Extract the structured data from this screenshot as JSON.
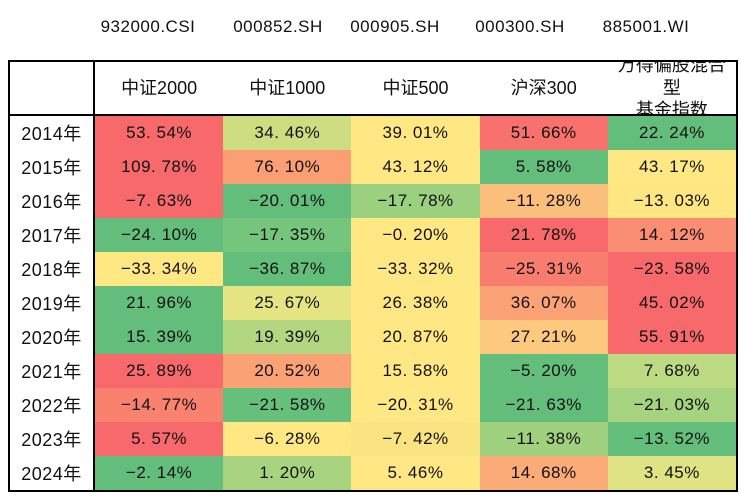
{
  "page": {
    "background": "#ffffff",
    "text_color": "#111111"
  },
  "codes": [
    "932000.CSI",
    "000852.SH",
    "000905.SH",
    "000300.SH",
    "885001.WI"
  ],
  "table": {
    "corner_label": "",
    "columns": [
      "中证2000",
      "中证1000",
      "中证500",
      "沪深300",
      "万得偏股混合型\n基金指数"
    ],
    "rows": [
      {
        "year": "2014年",
        "cells": [
          {
            "text": "53. 54%",
            "color": "#F8696B"
          },
          {
            "text": "34. 46%",
            "color": "#CEDC82"
          },
          {
            "text": "39. 01%",
            "color": "#FFE884"
          },
          {
            "text": "51. 66%",
            "color": "#F8716C"
          },
          {
            "text": "22. 24%",
            "color": "#63BE7B"
          }
        ]
      },
      {
        "year": "2015年",
        "cells": [
          {
            "text": "109. 78%",
            "color": "#F8696B"
          },
          {
            "text": "76. 10%",
            "color": "#FA9E74"
          },
          {
            "text": "43. 12%",
            "color": "#FFE884"
          },
          {
            "text": "5. 58%",
            "color": "#63BE7B"
          },
          {
            "text": "43. 17%",
            "color": "#FFE884"
          }
        ]
      },
      {
        "year": "2016年",
        "cells": [
          {
            "text": "−7. 63%",
            "color": "#F8696B"
          },
          {
            "text": "−20. 01%",
            "color": "#63BE7B"
          },
          {
            "text": "−17. 78%",
            "color": "#9AD07E"
          },
          {
            "text": "−11. 28%",
            "color": "#FCBF7B"
          },
          {
            "text": "−13. 03%",
            "color": "#FEE683"
          }
        ]
      },
      {
        "year": "2017年",
        "cells": [
          {
            "text": "−24. 10%",
            "color": "#63BE7B"
          },
          {
            "text": "−17. 35%",
            "color": "#75C67C"
          },
          {
            "text": "−0. 20%",
            "color": "#FFE884"
          },
          {
            "text": "21. 78%",
            "color": "#F8696B"
          },
          {
            "text": "14. 12%",
            "color": "#FA8E72"
          }
        ]
      },
      {
        "year": "2018年",
        "cells": [
          {
            "text": "−33. 34%",
            "color": "#FFE884"
          },
          {
            "text": "−36. 87%",
            "color": "#63BE7B"
          },
          {
            "text": "−33. 32%",
            "color": "#FFE884"
          },
          {
            "text": "−25. 31%",
            "color": "#F97D6F"
          },
          {
            "text": "−23. 58%",
            "color": "#F8696B"
          }
        ]
      },
      {
        "year": "2019年",
        "cells": [
          {
            "text": "21. 96%",
            "color": "#63BE7B"
          },
          {
            "text": "25. 67%",
            "color": "#E5E584"
          },
          {
            "text": "26. 38%",
            "color": "#FFE884"
          },
          {
            "text": "36. 07%",
            "color": "#FBA376"
          },
          {
            "text": "45. 02%",
            "color": "#F8696B"
          }
        ]
      },
      {
        "year": "2020年",
        "cells": [
          {
            "text": "15. 39%",
            "color": "#63BE7B"
          },
          {
            "text": "19. 39%",
            "color": "#B3D780"
          },
          {
            "text": "20. 87%",
            "color": "#FFE884"
          },
          {
            "text": "27. 21%",
            "color": "#FDC97E"
          },
          {
            "text": "55. 91%",
            "color": "#F8696B"
          }
        ]
      },
      {
        "year": "2021年",
        "cells": [
          {
            "text": "25. 89%",
            "color": "#F8696B"
          },
          {
            "text": "20. 52%",
            "color": "#FAA176"
          },
          {
            "text": "15. 58%",
            "color": "#FFE884"
          },
          {
            "text": "−5. 20%",
            "color": "#63BE7B"
          },
          {
            "text": "7. 68%",
            "color": "#BCDA81"
          }
        ]
      },
      {
        "year": "2022年",
        "cells": [
          {
            "text": "−14. 77%",
            "color": "#F9826F"
          },
          {
            "text": "−21. 58%",
            "color": "#66BF7B"
          },
          {
            "text": "−20. 31%",
            "color": "#FFE884"
          },
          {
            "text": "−21. 63%",
            "color": "#63BE7B"
          },
          {
            "text": "−21. 03%",
            "color": "#A6D37F"
          }
        ]
      },
      {
        "year": "2023年",
        "cells": [
          {
            "text": "5. 57%",
            "color": "#F8696B"
          },
          {
            "text": "−6. 28%",
            "color": "#FFE884"
          },
          {
            "text": "−7. 42%",
            "color": "#F9E481"
          },
          {
            "text": "−11. 38%",
            "color": "#9FD17E"
          },
          {
            "text": "−13. 52%",
            "color": "#63BE7B"
          }
        ]
      },
      {
        "year": "2024年",
        "cells": [
          {
            "text": "−2. 14%",
            "color": "#63BE7B"
          },
          {
            "text": "1. 20%",
            "color": "#A8D47F"
          },
          {
            "text": "5. 46%",
            "color": "#FFE884"
          },
          {
            "text": "14. 68%",
            "color": "#FBAB77"
          },
          {
            "text": "3. 45%",
            "color": "#E0E384"
          }
        ]
      }
    ]
  },
  "chart_data": {
    "type": "heatmap",
    "title": "",
    "unit": "%",
    "categories": [
      "2014年",
      "2015年",
      "2016年",
      "2017年",
      "2018年",
      "2019年",
      "2020年",
      "2021年",
      "2022年",
      "2023年",
      "2024年"
    ],
    "series": [
      {
        "name": "中证2000",
        "code": "932000.CSI",
        "values": [
          53.54,
          109.78,
          -7.63,
          -24.1,
          -33.34,
          21.96,
          15.39,
          25.89,
          -14.77,
          5.57,
          -2.14
        ]
      },
      {
        "name": "中证1000",
        "code": "000852.SH",
        "values": [
          34.46,
          76.1,
          -20.01,
          -17.35,
          -36.87,
          25.67,
          19.39,
          20.52,
          -21.58,
          -6.28,
          1.2
        ]
      },
      {
        "name": "中证500",
        "code": "000905.SH",
        "values": [
          39.01,
          43.12,
          -17.78,
          -0.2,
          -33.32,
          26.38,
          20.87,
          15.58,
          -20.31,
          -7.42,
          5.46
        ]
      },
      {
        "name": "沪深300",
        "code": "000300.SH",
        "values": [
          51.66,
          5.58,
          -11.28,
          21.78,
          -25.31,
          36.07,
          27.21,
          -5.2,
          -21.63,
          -11.38,
          14.68
        ]
      },
      {
        "name": "万得偏股混合型基金指数",
        "code": "885001.WI",
        "values": [
          22.24,
          43.17,
          -13.03,
          14.12,
          -23.58,
          45.02,
          55.91,
          7.68,
          -21.03,
          -13.52,
          3.45
        ]
      }
    ],
    "color_scale": {
      "high": "#F8696B",
      "mid": "#FFE884",
      "low": "#63BE7B",
      "applied_per": "row"
    },
    "layout": {
      "grid": false,
      "legend": false,
      "row_labels_left": true,
      "codes_above_columns": true
    }
  }
}
